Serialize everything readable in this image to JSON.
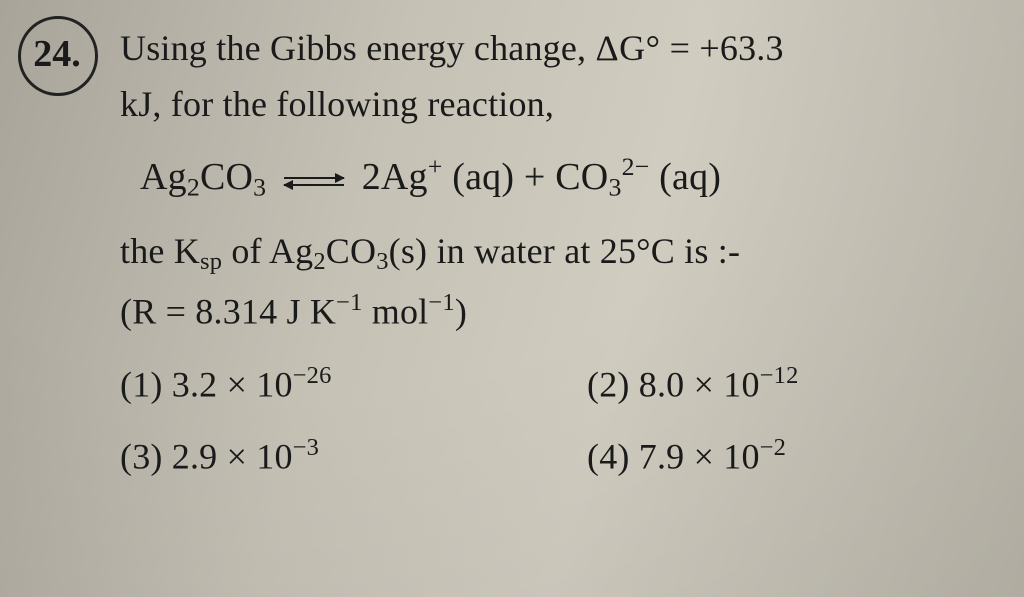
{
  "question": {
    "number": "24",
    "line1_a": "Using the Gibbs energy change, ",
    "delta": "ΔG°",
    "eq": " = ",
    "val": "+63.3",
    "line2": "kJ, for the following reaction,",
    "eq_lhs_a": "Ag",
    "eq_lhs_sub1": "2",
    "eq_lhs_b": "CO",
    "eq_lhs_sub2": "3",
    "eq_rhs_a": "2Ag",
    "eq_rhs_sup1": "+",
    "eq_rhs_par1": " (aq) + CO",
    "eq_rhs_sub3": "3",
    "eq_rhs_sup2": "2−",
    "eq_rhs_par2": " (aq)",
    "line3_a": "the K",
    "line3_sub": "sp",
    "line3_b": " of Ag",
    "line3_sub2": "2",
    "line3_c": "CO",
    "line3_sub3": "3",
    "line3_d": "(s) in water at 25°C is :-",
    "line4": "(R = 8.314 J K",
    "line4_sup1": "−1",
    "line4_mid": " mol",
    "line4_sup2": "−1",
    "line4_end": ")"
  },
  "options": {
    "o1_a": "(1) 3.2 × 10",
    "o1_sup": "−26",
    "o2_a": "(2) 8.0 × 10",
    "o2_sup": "−12",
    "o3_a": "(3) 2.9 × 10",
    "o3_sup": "−3",
    "o4_a": "(4) 7.9 × 10",
    "o4_sup": "−2"
  },
  "colors": {
    "text": "#1a1a1a",
    "bg_light": "#d0ccc0",
    "bg_dark": "#a8a49a"
  }
}
